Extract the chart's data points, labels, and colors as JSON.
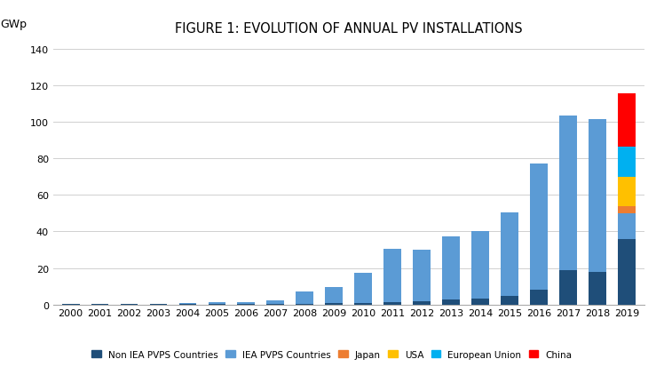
{
  "title": "FIGURE 1: EVOLUTION OF ANNUAL PV INSTALLATIONS",
  "ylabel": "GWp",
  "years": [
    2000,
    2001,
    2002,
    2003,
    2004,
    2005,
    2006,
    2007,
    2008,
    2009,
    2010,
    2011,
    2012,
    2013,
    2014,
    2015,
    2016,
    2017,
    2018,
    2019
  ],
  "series": {
    "Non IEA PVPS Countries": [
      0.1,
      0.1,
      0.1,
      0.1,
      0.2,
      0.3,
      0.3,
      0.4,
      0.5,
      0.6,
      0.8,
      1.5,
      2.0,
      2.5,
      3.0,
      4.5,
      8.0,
      19.0,
      18.0,
      36.0
    ],
    "IEA PVPS Countries": [
      0.2,
      0.2,
      0.2,
      0.3,
      0.8,
      1.2,
      1.2,
      1.8,
      6.5,
      9.0,
      16.5,
      29.0,
      28.0,
      35.0,
      37.0,
      46.0,
      69.0,
      84.5,
      83.5,
      14.0
    ],
    "Japan": [
      0.0,
      0.0,
      0.0,
      0.0,
      0.0,
      0.0,
      0.0,
      0.0,
      0.0,
      0.0,
      0.0,
      0.0,
      0.0,
      0.0,
      0.0,
      0.0,
      0.0,
      0.0,
      0.0,
      4.0
    ],
    "USA": [
      0.0,
      0.0,
      0.0,
      0.0,
      0.0,
      0.0,
      0.0,
      0.0,
      0.0,
      0.0,
      0.0,
      0.0,
      0.0,
      0.0,
      0.0,
      0.0,
      0.0,
      0.0,
      0.0,
      16.0
    ],
    "European Union": [
      0.0,
      0.0,
      0.0,
      0.0,
      0.0,
      0.0,
      0.0,
      0.0,
      0.0,
      0.0,
      0.0,
      0.0,
      0.0,
      0.0,
      0.0,
      0.0,
      0.0,
      0.0,
      0.0,
      16.5
    ],
    "China": [
      0.0,
      0.0,
      0.0,
      0.0,
      0.0,
      0.0,
      0.0,
      0.0,
      0.0,
      0.0,
      0.0,
      0.0,
      0.0,
      0.0,
      0.0,
      0.0,
      0.0,
      0.0,
      0.0,
      29.0
    ]
  },
  "colors": {
    "Non IEA PVPS Countries": "#1f4e79",
    "IEA PVPS Countries": "#5b9bd5",
    "Japan": "#ed7d31",
    "USA": "#ffc000",
    "European Union": "#00b0f0",
    "China": "#ff0000"
  },
  "ylim": [
    0,
    145
  ],
  "yticks": [
    0,
    20,
    40,
    60,
    80,
    100,
    120,
    140
  ],
  "background_color": "#ffffff",
  "grid_color": "#d0d0d0",
  "title_fontsize": 10.5,
  "label_fontsize": 9,
  "tick_fontsize": 8
}
